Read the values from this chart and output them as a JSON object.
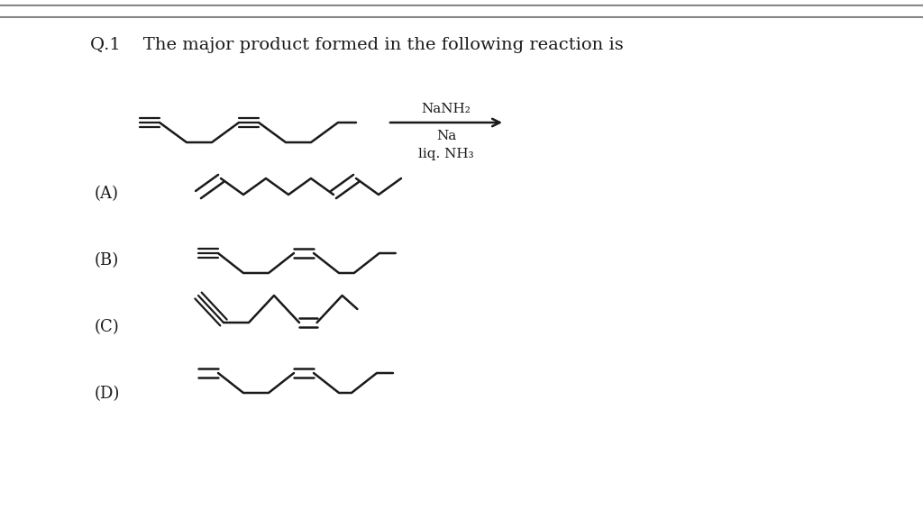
{
  "title": "Q.1    The major product formed in the following reaction is",
  "background_color": "#ffffff",
  "text_color": "#1a1a1a",
  "line_color": "#1a1a1a",
  "line_width": 1.8,
  "reagent_above": "NaNH₂",
  "reagent_below1": "Na",
  "reagent_below2": "liq. NH₃",
  "labels": [
    "(A)",
    "(B)",
    "(C)",
    "(D)"
  ]
}
